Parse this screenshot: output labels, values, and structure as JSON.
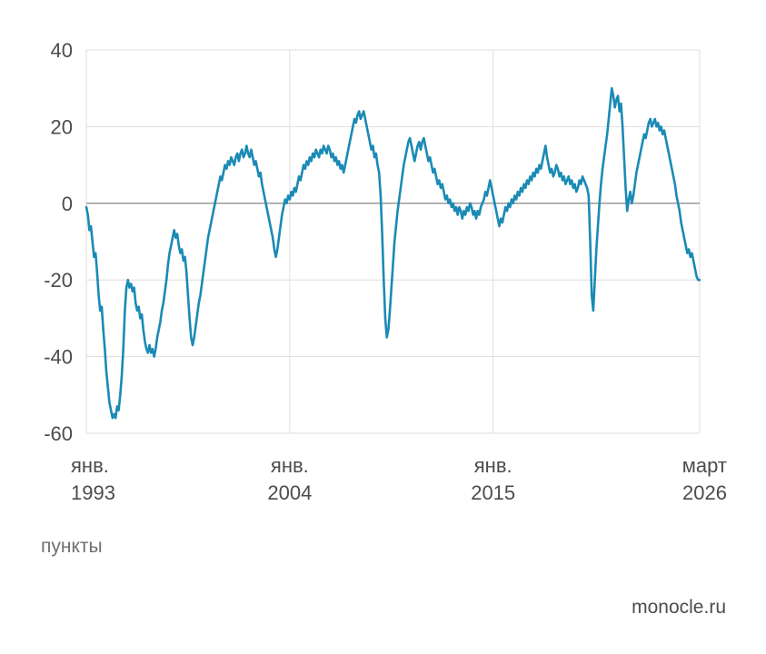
{
  "chart_data": {
    "type": "line",
    "caption": "пункты",
    "source": "monocle.ru",
    "line_color": "#1a8ab5",
    "grid_color": "#dedede",
    "zero_line_color": "#9a9a9a",
    "text_color": "#4c4c4c",
    "ylim": [
      -60,
      40
    ],
    "y_ticks": [
      40,
      20,
      0,
      -20,
      -40,
      -60
    ],
    "xlim": [
      1993.0,
      2026.17
    ],
    "x_ticks": [
      {
        "pos": 1993.0,
        "line1": "янв.",
        "line2": "1993"
      },
      {
        "pos": 2004.0,
        "line1": "янв.",
        "line2": "2004"
      },
      {
        "pos": 2015.0,
        "line1": "янв.",
        "line2": "2015"
      },
      {
        "pos": 2026.17,
        "line1": "март",
        "line2": "2026"
      }
    ],
    "start_year": 1993,
    "frequency": "monthly",
    "values": [
      -1,
      -3,
      -7,
      -6,
      -10,
      -14,
      -13,
      -18,
      -24,
      -28,
      -27,
      -33,
      -38,
      -44,
      -48,
      -52,
      -54,
      -56,
      -55,
      -56,
      -53,
      -54,
      -50,
      -45,
      -38,
      -28,
      -22,
      -20,
      -22,
      -21,
      -23,
      -22,
      -26,
      -28,
      -27,
      -30,
      -29,
      -33,
      -36,
      -38,
      -39,
      -37,
      -39,
      -38,
      -40,
      -38,
      -35,
      -33,
      -31,
      -28,
      -26,
      -23,
      -20,
      -16,
      -13,
      -11,
      -9,
      -7,
      -9,
      -8,
      -11,
      -13,
      -12,
      -15,
      -14,
      -18,
      -24,
      -30,
      -35,
      -37,
      -35,
      -32,
      -29,
      -26,
      -24,
      -21,
      -18,
      -15,
      -12,
      -9,
      -7,
      -5,
      -3,
      -1,
      1,
      3,
      5,
      7,
      6,
      8,
      10,
      9,
      11,
      10,
      12,
      11,
      10,
      12,
      13,
      11,
      13,
      14,
      12,
      13,
      15,
      13,
      12,
      14,
      12,
      10,
      11,
      9,
      7,
      8,
      5,
      3,
      1,
      -1,
      -3,
      -5,
      -7,
      -9,
      -12,
      -14,
      -12,
      -9,
      -6,
      -3,
      -1,
      1,
      0,
      2,
      1,
      3,
      2,
      4,
      3,
      5,
      7,
      6,
      8,
      10,
      9,
      11,
      10,
      12,
      11,
      13,
      12,
      14,
      13,
      12,
      14,
      13,
      15,
      14,
      13,
      15,
      14,
      12,
      13,
      11,
      12,
      10,
      11,
      9,
      10,
      8,
      10,
      12,
      14,
      16,
      18,
      20,
      22,
      21,
      23,
      24,
      22,
      23,
      24,
      22,
      20,
      18,
      16,
      14,
      15,
      12,
      13,
      10,
      8,
      2,
      -8,
      -20,
      -30,
      -35,
      -33,
      -28,
      -22,
      -16,
      -10,
      -6,
      -2,
      1,
      4,
      7,
      10,
      12,
      14,
      16,
      17,
      15,
      13,
      11,
      13,
      15,
      16,
      14,
      16,
      17,
      15,
      13,
      11,
      12,
      10,
      8,
      9,
      7,
      5,
      6,
      4,
      5,
      3,
      1,
      2,
      0,
      1,
      -1,
      0,
      -2,
      -1,
      -3,
      -1,
      -2,
      -4,
      -2,
      -3,
      -1,
      -2,
      0,
      -1,
      -3,
      -2,
      -4,
      -2,
      -3,
      -1,
      0,
      1,
      3,
      2,
      4,
      6,
      4,
      2,
      0,
      -2,
      -4,
      -6,
      -4,
      -5,
      -3,
      -1,
      -2,
      0,
      -1,
      1,
      0,
      2,
      1,
      3,
      2,
      4,
      3,
      5,
      4,
      6,
      5,
      7,
      6,
      8,
      7,
      9,
      8,
      10,
      9,
      11,
      13,
      15,
      12,
      10,
      8,
      9,
      7,
      8,
      10,
      9,
      7,
      8,
      6,
      7,
      5,
      6,
      7,
      5,
      6,
      4,
      5,
      3,
      4,
      6,
      5,
      7,
      6,
      5,
      4,
      2,
      -10,
      -24,
      -28,
      -20,
      -12,
      -6,
      0,
      5,
      9,
      12,
      15,
      18,
      22,
      26,
      30,
      28,
      25,
      27,
      28,
      24,
      26,
      20,
      12,
      4,
      -2,
      1,
      3,
      0,
      2,
      5,
      8,
      10,
      12,
      14,
      16,
      18,
      17,
      19,
      21,
      22,
      20,
      21,
      22,
      20,
      21,
      19,
      20,
      18,
      19,
      17,
      15,
      13,
      11,
      9,
      7,
      5,
      2,
      0,
      -2,
      -5,
      -7,
      -9,
      -11,
      -13,
      -12,
      -14,
      -13,
      -15,
      -17,
      -19,
      -20,
      -20
    ]
  }
}
